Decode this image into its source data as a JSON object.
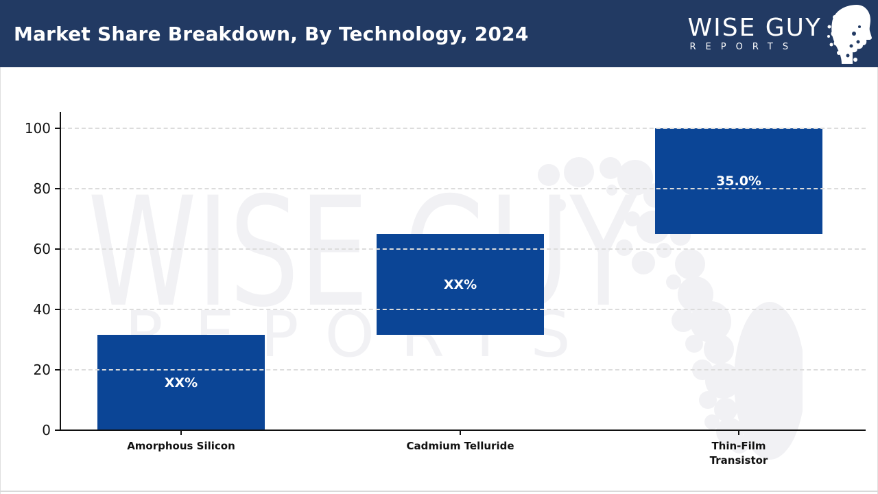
{
  "header": {
    "title": "Market Share Breakdown, By Technology, 2024",
    "background_color": "#223a63",
    "title_color": "#ffffff",
    "logo": {
      "line1": "WISE GUY",
      "line2": "REPORTS",
      "face_icon": "dotted-head-profile"
    }
  },
  "watermark": {
    "line1": "WISE GUY",
    "line2": "REPORTS",
    "color": "#f1f1f4"
  },
  "chart_data": {
    "type": "bar",
    "subtype": "waterfall",
    "title": "Market Share Breakdown, By Technology, 2024",
    "categories": [
      "Amorphous Silicon",
      "Cadmium Telluride",
      "Thin-Film\nTransistor"
    ],
    "bars": [
      {
        "category": "Amorphous Silicon",
        "start": 0,
        "end": 31.5,
        "value": 31.5,
        "label": "XX%"
      },
      {
        "category": "Cadmium Telluride",
        "start": 31.5,
        "end": 65,
        "value": 33.5,
        "label": "XX%"
      },
      {
        "category": "Thin-Film Transistor",
        "start": 65,
        "end": 100,
        "value": 35.0,
        "label": "35.0%"
      }
    ],
    "xlabel": "",
    "ylabel": "",
    "yticks": [
      0,
      20,
      40,
      60,
      80,
      100
    ],
    "ylim": [
      0,
      105
    ],
    "grid": "horizontal-dashed",
    "grid_color": "#dcdcdc",
    "legend": "none",
    "bar_color": "#0b4596",
    "bar_label_color": "#ffffff",
    "axis_color": "#111111"
  }
}
